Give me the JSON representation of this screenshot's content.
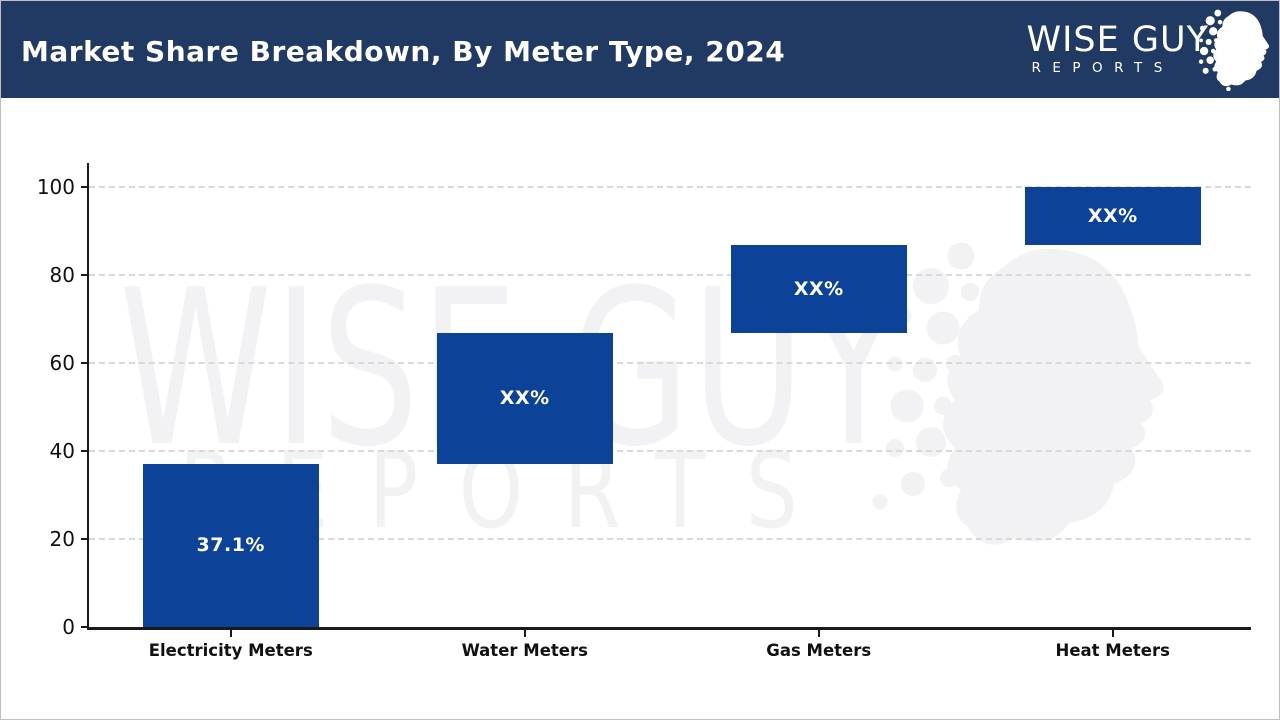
{
  "header": {
    "title": "Market Share Breakdown, By Meter Type, 2024",
    "background_color": "#203a64",
    "brand": {
      "line1": "WISE GUY",
      "line2": "REPORTS",
      "face_icon": "dotted-head-profile"
    }
  },
  "watermark": {
    "line1": "WISE GUY",
    "line2": "REPORTS",
    "face_icon": "dotted-head-profile",
    "color": "#f2f2f4"
  },
  "chart_data": {
    "type": "bar",
    "subtype": "waterfall",
    "title": "Market Share Breakdown, By Meter Type, 2024",
    "categories": [
      "Electricity Meters",
      "Water Meters",
      "Gas Meters",
      "Heat Meters"
    ],
    "segments": [
      {
        "category": "Electricity Meters",
        "start": 0,
        "end": 37.1,
        "label": "37.1%"
      },
      {
        "category": "Water Meters",
        "start": 37.1,
        "end": 66.9,
        "label": "XX%"
      },
      {
        "category": "Gas Meters",
        "start": 66.9,
        "end": 86.8,
        "label": "XX%"
      },
      {
        "category": "Heat Meters",
        "start": 86.8,
        "end": 100,
        "label": "XX%"
      }
    ],
    "yticks": [
      0,
      20,
      40,
      60,
      80,
      100
    ],
    "ylim": [
      0,
      105
    ],
    "xlabel": "",
    "ylabel": "",
    "grid": "horizontal-dashed",
    "legend": "none",
    "bar_color": "#0d4299",
    "bar_label_color": "#ffffff",
    "axis_color": "#1a1a1a"
  }
}
